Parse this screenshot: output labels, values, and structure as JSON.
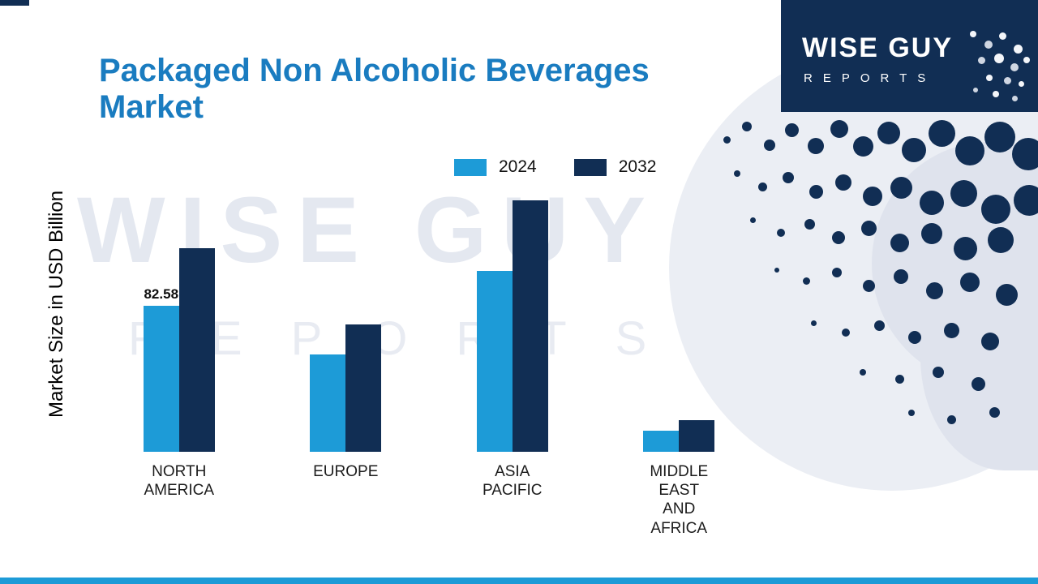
{
  "logo": {
    "brand": "WISE GUY",
    "sub": "REPORTS"
  },
  "watermark": {
    "line1": "WISE GUY",
    "line2": "REPORTS"
  },
  "chart_data": {
    "type": "bar",
    "title": "Packaged Non Alcoholic Beverages Market",
    "ylabel": "Market Size in USD Billion",
    "xlabel": "",
    "categories": [
      "NORTH AMERICA",
      "EUROPE",
      "ASIA PACIFIC",
      "MIDDLE EAST AND AFRICA"
    ],
    "categories_display": [
      "NORTH\nAMERICA",
      "EUROPE",
      "ASIA\nPACIFIC",
      "MIDDLE\nEAST\nAND\nAFRICA"
    ],
    "series": [
      {
        "name": "2024",
        "color": "#1d9bd7",
        "values": [
          82.58,
          55,
          102,
          12
        ]
      },
      {
        "name": "2032",
        "color": "#112e54",
        "values": [
          115,
          72,
          142,
          18
        ]
      }
    ],
    "ylim": [
      0,
      165
    ],
    "grid": false,
    "legend_position": "top-center",
    "annotations": [
      {
        "series": "2024",
        "category": "NORTH AMERICA",
        "text": "82.58"
      }
    ]
  },
  "colors": {
    "accent_blue": "#1d9bd7",
    "navy": "#112e54",
    "title_blue": "#1a7cc0",
    "watermark_gray": "#e4e8f0",
    "circle_gray": "#ebeef4"
  }
}
